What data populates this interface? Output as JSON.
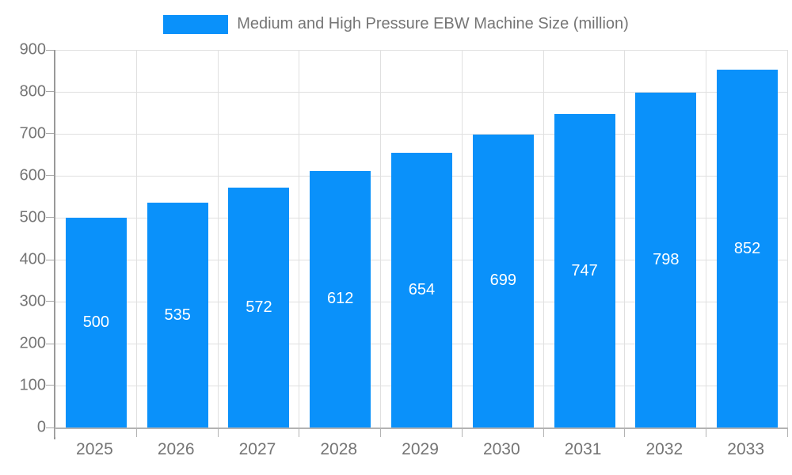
{
  "chart_data": {
    "type": "bar",
    "title": "Medium and High Pressure EBW Machine Size (million)",
    "categories": [
      "2025",
      "2026",
      "2027",
      "2028",
      "2029",
      "2030",
      "2031",
      "2032",
      "2033"
    ],
    "values": [
      500,
      535,
      572,
      612,
      654,
      699,
      747,
      798,
      852
    ],
    "xlabel": "",
    "ylabel": "",
    "ylim": [
      0,
      900
    ],
    "ytick_interval": 100,
    "ytick_labels": [
      "0",
      "100",
      "200",
      "300",
      "400",
      "500",
      "600",
      "700",
      "800",
      "900"
    ],
    "grid": true,
    "legend_position": "top",
    "colors": {
      "bar": "#0a91fa",
      "bar_value_label": "#ffffff",
      "axis_text": "#757575",
      "gridline": "#e0e0e0",
      "y_axis_line": "#999999",
      "x_axis_line": "#b3b3b3"
    },
    "bar_width_fraction": 0.75
  }
}
